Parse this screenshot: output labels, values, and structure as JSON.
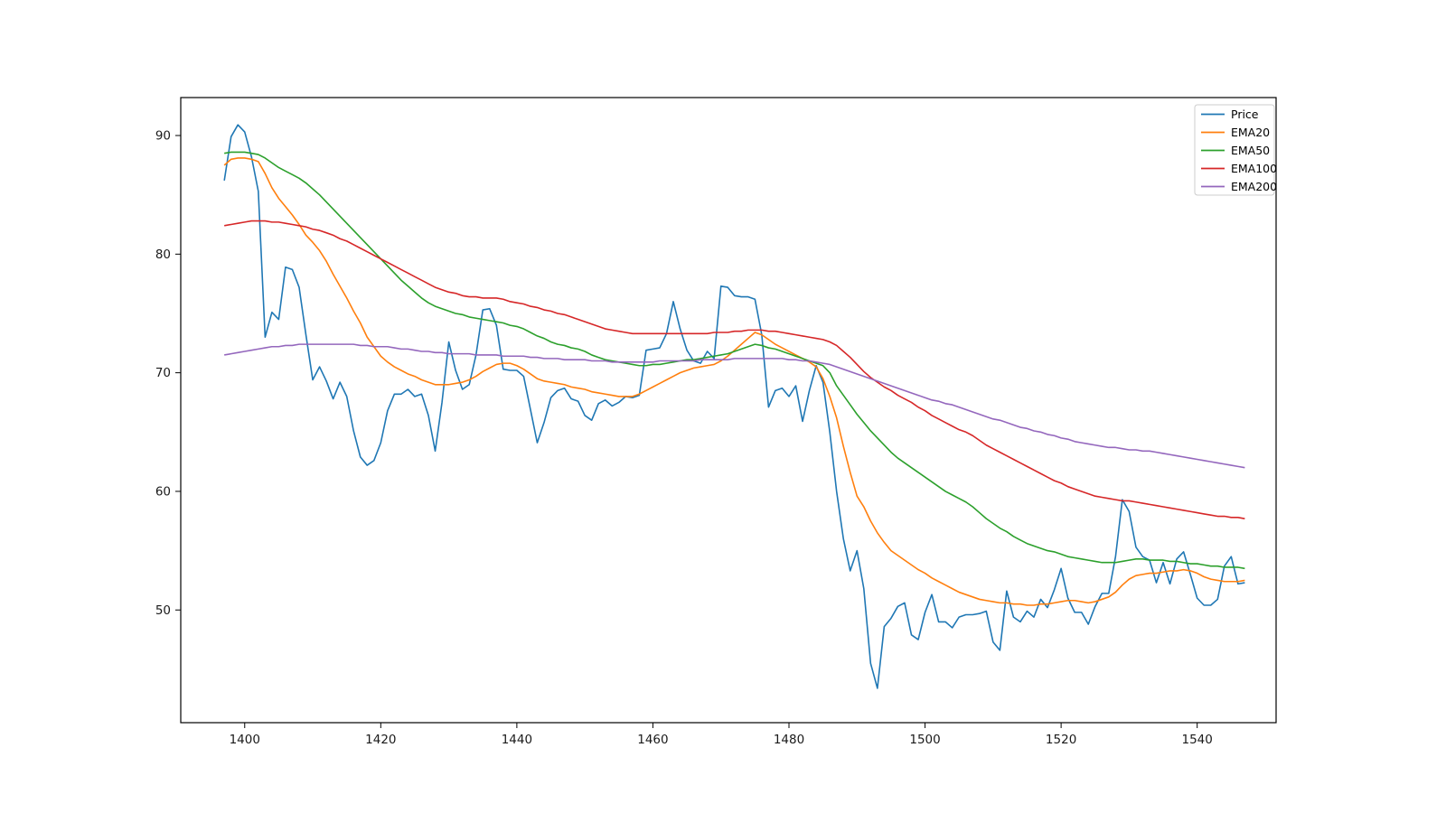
{
  "figure": {
    "background_color": "#ffffff",
    "axes_edge_color": "#000000",
    "tick_label_color": "#1a1a1a",
    "legend_border_color": "#cccccc",
    "legend_background_color": "#ffffff"
  },
  "chart_data": {
    "type": "line",
    "title": "",
    "xlabel": "",
    "ylabel": "",
    "grid": false,
    "legend_position": "upper right",
    "xlim": [
      1390.6,
      1551.6
    ],
    "ylim": [
      40.5,
      93.2
    ],
    "xticks": [
      1400,
      1420,
      1440,
      1460,
      1480,
      1500,
      1520,
      1540
    ],
    "yticks": [
      50,
      60,
      70,
      80,
      90
    ],
    "x_start": 1397,
    "x_step": 1,
    "series": [
      {
        "name": "Price",
        "color": "#1f77b4",
        "values": [
          86.2,
          89.9,
          90.9,
          90.3,
          88.2,
          85.3,
          73.0,
          75.1,
          74.5,
          78.9,
          78.7,
          77.2,
          73.2,
          69.4,
          70.5,
          69.3,
          67.8,
          69.2,
          68.0,
          65.1,
          62.9,
          62.2,
          62.6,
          64.1,
          66.8,
          68.2,
          68.2,
          68.6,
          68.0,
          68.2,
          66.4,
          63.4,
          67.5,
          72.6,
          70.2,
          68.6,
          69.0,
          71.5,
          75.3,
          75.4,
          74.0,
          70.3,
          70.2,
          70.2,
          69.7,
          66.9,
          64.1,
          65.8,
          67.9,
          68.5,
          68.7,
          67.8,
          67.6,
          66.4,
          66.0,
          67.4,
          67.7,
          67.2,
          67.5,
          68.0,
          67.9,
          68.1,
          71.9,
          72.0,
          72.1,
          73.3,
          76.0,
          73.7,
          71.9,
          71.0,
          70.8,
          71.8,
          71.2,
          77.3,
          77.2,
          76.5,
          76.4,
          76.4,
          76.2,
          73.2,
          67.1,
          68.5,
          68.7,
          68.0,
          68.9,
          65.9,
          68.5,
          70.6,
          69.2,
          65.0,
          60.0,
          56.0,
          53.3,
          55.0,
          51.8,
          45.5,
          43.4,
          48.6,
          49.3,
          50.3,
          50.6,
          47.9,
          47.5,
          49.8,
          51.3,
          49.0,
          49.0,
          48.5,
          49.4,
          49.6,
          49.6,
          49.7,
          49.9,
          47.3,
          46.6,
          51.6,
          49.4,
          49.0,
          49.9,
          49.4,
          50.9,
          50.2,
          51.7,
          53.5,
          51.0,
          49.8,
          49.8,
          48.8,
          50.3,
          51.4,
          51.4,
          54.5,
          59.3,
          58.3,
          55.3,
          54.5,
          54.2,
          52.3,
          54.0,
          52.2,
          54.3,
          54.9,
          53.0,
          51.0,
          50.4,
          50.4,
          50.9,
          53.7,
          54.5,
          52.2,
          52.3
        ]
      },
      {
        "name": "EMA20",
        "color": "#ff7f0e",
        "values": [
          87.5,
          88.0,
          88.1,
          88.1,
          88.0,
          87.8,
          86.8,
          85.6,
          84.7,
          84.0,
          83.3,
          82.5,
          81.6,
          81.0,
          80.3,
          79.4,
          78.3,
          77.3,
          76.3,
          75.2,
          74.2,
          73.0,
          72.2,
          71.4,
          70.9,
          70.5,
          70.2,
          69.9,
          69.7,
          69.4,
          69.2,
          69.0,
          69.0,
          69.0,
          69.1,
          69.2,
          69.4,
          69.7,
          70.1,
          70.4,
          70.7,
          70.8,
          70.8,
          70.6,
          70.3,
          69.9,
          69.5,
          69.3,
          69.2,
          69.1,
          69.0,
          68.8,
          68.7,
          68.6,
          68.4,
          68.3,
          68.2,
          68.1,
          68.0,
          68.0,
          68.0,
          68.2,
          68.5,
          68.8,
          69.1,
          69.4,
          69.7,
          70.0,
          70.2,
          70.4,
          70.5,
          70.6,
          70.7,
          71.0,
          71.4,
          71.9,
          72.4,
          72.9,
          73.4,
          73.2,
          72.8,
          72.4,
          72.1,
          71.8,
          71.5,
          71.2,
          70.9,
          70.5,
          69.5,
          68.0,
          66.2,
          63.8,
          61.6,
          59.6,
          58.7,
          57.5,
          56.5,
          55.7,
          55.0,
          54.6,
          54.2,
          53.8,
          53.4,
          53.1,
          52.7,
          52.4,
          52.1,
          51.8,
          51.5,
          51.3,
          51.1,
          50.9,
          50.8,
          50.7,
          50.6,
          50.6,
          50.5,
          50.5,
          50.4,
          50.4,
          50.5,
          50.5,
          50.6,
          50.7,
          50.8,
          50.8,
          50.7,
          50.6,
          50.7,
          50.9,
          51.1,
          51.5,
          52.1,
          52.6,
          52.9,
          53.0,
          53.1,
          53.1,
          53.2,
          53.3,
          53.3,
          53.4,
          53.3,
          53.1,
          52.8,
          52.6,
          52.5,
          52.4,
          52.4,
          52.4,
          52.5
        ]
      },
      {
        "name": "EMA50",
        "color": "#2ca02c",
        "values": [
          88.5,
          88.6,
          88.6,
          88.6,
          88.5,
          88.4,
          88.1,
          87.7,
          87.3,
          87.0,
          86.7,
          86.4,
          86.0,
          85.5,
          85.0,
          84.4,
          83.8,
          83.2,
          82.6,
          82.0,
          81.4,
          80.8,
          80.2,
          79.6,
          79.0,
          78.4,
          77.8,
          77.3,
          76.8,
          76.3,
          75.9,
          75.6,
          75.4,
          75.2,
          75.0,
          74.9,
          74.7,
          74.6,
          74.5,
          74.4,
          74.3,
          74.2,
          74.0,
          73.9,
          73.7,
          73.4,
          73.1,
          72.9,
          72.6,
          72.4,
          72.3,
          72.1,
          72.0,
          71.8,
          71.5,
          71.3,
          71.1,
          71.0,
          70.9,
          70.8,
          70.7,
          70.6,
          70.6,
          70.7,
          70.7,
          70.8,
          70.9,
          71.0,
          71.1,
          71.1,
          71.2,
          71.3,
          71.4,
          71.5,
          71.6,
          71.8,
          72.0,
          72.2,
          72.4,
          72.3,
          72.1,
          72.0,
          71.8,
          71.6,
          71.4,
          71.2,
          71.0,
          70.8,
          70.6,
          70.0,
          68.9,
          68.1,
          67.3,
          66.5,
          65.8,
          65.1,
          64.5,
          63.9,
          63.3,
          62.8,
          62.4,
          62.0,
          61.6,
          61.2,
          60.8,
          60.4,
          60.0,
          59.7,
          59.4,
          59.1,
          58.7,
          58.2,
          57.7,
          57.3,
          56.9,
          56.6,
          56.2,
          55.9,
          55.6,
          55.4,
          55.2,
          55.0,
          54.9,
          54.7,
          54.5,
          54.4,
          54.3,
          54.2,
          54.1,
          54.0,
          54.0,
          54.0,
          54.1,
          54.2,
          54.3,
          54.3,
          54.2,
          54.2,
          54.2,
          54.1,
          54.1,
          54.0,
          53.9,
          53.9,
          53.8,
          53.7,
          53.7,
          53.6,
          53.6,
          53.6,
          53.5
        ]
      },
      {
        "name": "EMA100",
        "color": "#d62728",
        "values": [
          82.4,
          82.5,
          82.6,
          82.7,
          82.8,
          82.8,
          82.8,
          82.7,
          82.7,
          82.6,
          82.5,
          82.4,
          82.3,
          82.1,
          82.0,
          81.8,
          81.6,
          81.3,
          81.1,
          80.8,
          80.5,
          80.2,
          79.9,
          79.6,
          79.3,
          79.0,
          78.7,
          78.4,
          78.1,
          77.8,
          77.5,
          77.2,
          77.0,
          76.8,
          76.7,
          76.5,
          76.4,
          76.4,
          76.3,
          76.3,
          76.3,
          76.2,
          76.0,
          75.9,
          75.8,
          75.6,
          75.5,
          75.3,
          75.2,
          75.0,
          74.9,
          74.7,
          74.5,
          74.3,
          74.1,
          73.9,
          73.7,
          73.6,
          73.5,
          73.4,
          73.3,
          73.3,
          73.3,
          73.3,
          73.3,
          73.3,
          73.3,
          73.3,
          73.3,
          73.3,
          73.3,
          73.3,
          73.4,
          73.4,
          73.4,
          73.5,
          73.5,
          73.6,
          73.6,
          73.6,
          73.5,
          73.5,
          73.4,
          73.3,
          73.2,
          73.1,
          73.0,
          72.9,
          72.8,
          72.6,
          72.3,
          71.8,
          71.3,
          70.7,
          70.1,
          69.6,
          69.2,
          68.8,
          68.5,
          68.1,
          67.8,
          67.5,
          67.1,
          66.8,
          66.4,
          66.1,
          65.8,
          65.5,
          65.2,
          65.0,
          64.7,
          64.3,
          63.9,
          63.6,
          63.3,
          63.0,
          62.7,
          62.4,
          62.1,
          61.8,
          61.5,
          61.2,
          60.9,
          60.7,
          60.4,
          60.2,
          60.0,
          59.8,
          59.6,
          59.5,
          59.4,
          59.3,
          59.2,
          59.2,
          59.1,
          59.0,
          58.9,
          58.8,
          58.7,
          58.6,
          58.5,
          58.4,
          58.3,
          58.2,
          58.1,
          58.0,
          57.9,
          57.9,
          57.8,
          57.8,
          57.7
        ]
      },
      {
        "name": "EMA200",
        "color": "#9467bd",
        "values": [
          71.5,
          71.6,
          71.7,
          71.8,
          71.9,
          72.0,
          72.1,
          72.2,
          72.2,
          72.3,
          72.3,
          72.4,
          72.4,
          72.4,
          72.4,
          72.4,
          72.4,
          72.4,
          72.4,
          72.4,
          72.3,
          72.3,
          72.2,
          72.2,
          72.2,
          72.1,
          72.0,
          72.0,
          71.9,
          71.8,
          71.8,
          71.7,
          71.7,
          71.6,
          71.6,
          71.6,
          71.6,
          71.5,
          71.5,
          71.5,
          71.5,
          71.4,
          71.4,
          71.4,
          71.4,
          71.3,
          71.3,
          71.2,
          71.2,
          71.2,
          71.1,
          71.1,
          71.1,
          71.1,
          71.0,
          71.0,
          71.0,
          70.9,
          70.9,
          70.9,
          70.9,
          70.9,
          70.9,
          70.9,
          71.0,
          71.0,
          71.0,
          71.0,
          71.0,
          71.0,
          71.1,
          71.1,
          71.1,
          71.1,
          71.1,
          71.2,
          71.2,
          71.2,
          71.2,
          71.2,
          71.2,
          71.2,
          71.2,
          71.1,
          71.1,
          71.0,
          71.0,
          70.9,
          70.8,
          70.7,
          70.5,
          70.3,
          70.1,
          69.9,
          69.7,
          69.5,
          69.3,
          69.1,
          68.9,
          68.7,
          68.5,
          68.3,
          68.1,
          67.9,
          67.7,
          67.6,
          67.4,
          67.3,
          67.1,
          66.9,
          66.7,
          66.5,
          66.3,
          66.1,
          66.0,
          65.8,
          65.6,
          65.4,
          65.3,
          65.1,
          65.0,
          64.8,
          64.7,
          64.5,
          64.4,
          64.2,
          64.1,
          64.0,
          63.9,
          63.8,
          63.7,
          63.7,
          63.6,
          63.5,
          63.5,
          63.4,
          63.4,
          63.3,
          63.2,
          63.1,
          63.0,
          62.9,
          62.8,
          62.7,
          62.6,
          62.5,
          62.4,
          62.3,
          62.2,
          62.1,
          62.0
        ]
      }
    ]
  }
}
